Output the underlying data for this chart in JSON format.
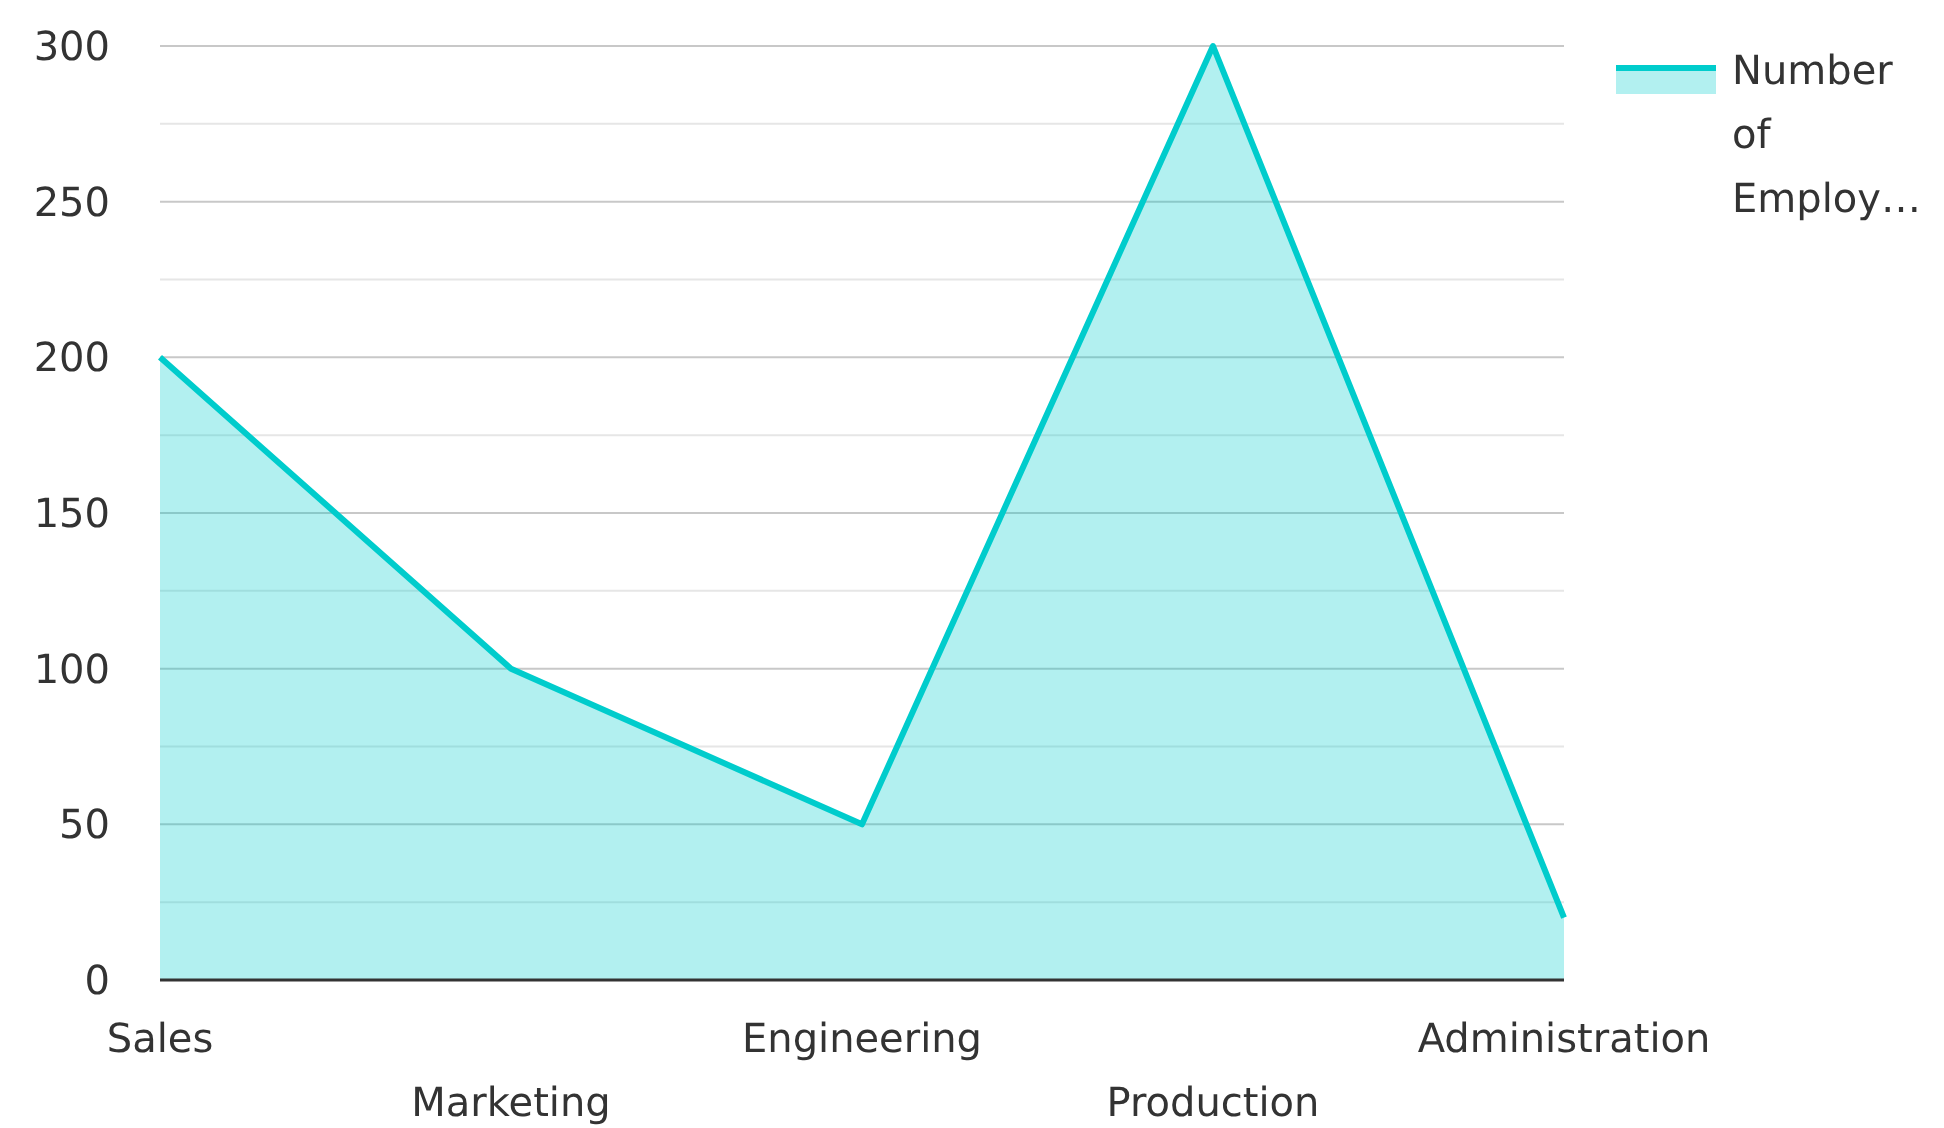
{
  "chart_data": {
    "type": "area",
    "categories": [
      "Sales",
      "Marketing",
      "Engineering",
      "Production",
      "Administration"
    ],
    "series": [
      {
        "name": "Number of Employ…",
        "color": "#00cccc",
        "values": [
          200,
          100,
          50,
          300,
          20
        ]
      }
    ],
    "ylim": [
      0,
      300
    ],
    "yticks": [
      0,
      {
        "value": 25,
        "label": null
      },
      50,
      {
        "value": 75,
        "label": null
      },
      100,
      {
        "value": 125,
        "label": null
      },
      150,
      {
        "value": 175,
        "label": null
      },
      200,
      {
        "value": 225,
        "label": null
      },
      250,
      {
        "value": 275,
        "label": null
      },
      300
    ],
    "grid": "y",
    "legend": "top right"
  }
}
